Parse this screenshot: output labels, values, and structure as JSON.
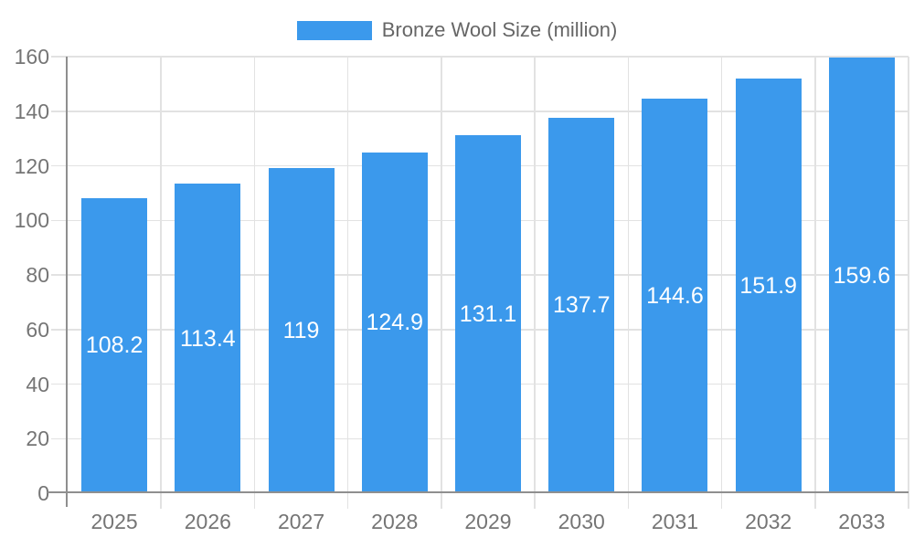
{
  "chart_data": {
    "type": "bar",
    "title": "",
    "legend": {
      "label": "Bronze Wool Size (million)",
      "position": "top"
    },
    "categories": [
      "2025",
      "2026",
      "2027",
      "2028",
      "2029",
      "2030",
      "2031",
      "2032",
      "2033"
    ],
    "series": [
      {
        "name": "Bronze Wool Size (million)",
        "values": [
          108.2,
          113.4,
          119,
          124.9,
          131.1,
          137.7,
          144.6,
          151.9,
          159.6
        ]
      }
    ],
    "value_labels": [
      "108.2",
      "113.4",
      "119",
      "124.9",
      "131.1",
      "137.7",
      "144.6",
      "151.9",
      "159.6"
    ],
    "xlabel": "",
    "ylabel": "",
    "ylim": [
      0,
      160
    ],
    "y_ticks": [
      0,
      20,
      40,
      60,
      80,
      100,
      120,
      140,
      160
    ],
    "grid": "horizontal and vertical category boundaries",
    "legend_position": "top-center",
    "colors": {
      "bar": "#3B99EC",
      "grid": "#E2E2E2",
      "axis": "#8F8F8F",
      "axis_label": "#757575",
      "legend_text": "#666666",
      "value_label": "#FFFFFF",
      "background": "#FFFFFF"
    }
  }
}
